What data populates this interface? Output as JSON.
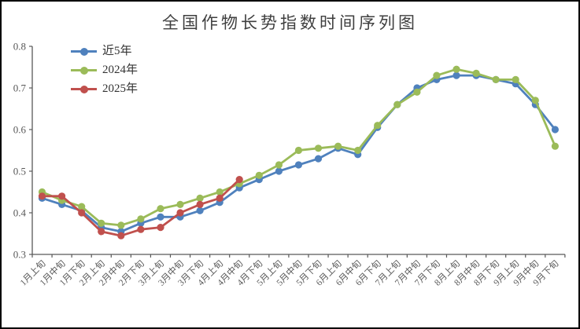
{
  "chart_data": {
    "type": "line",
    "title": "全国作物长势指数时间序列图",
    "xlabel": "",
    "ylabel": "",
    "ylim": [
      0.3,
      0.8
    ],
    "ytick_step": 0.1,
    "ytick_labels": [
      "0.3",
      "0.4",
      "0.5",
      "0.6",
      "0.7",
      "0.8"
    ],
    "grid": false,
    "legend_position": "top-left-inside",
    "axis_color": "#595959",
    "tick_label_color": "#595959",
    "categories": [
      "1月上旬",
      "1月中旬",
      "1月下旬",
      "2月上旬",
      "2月中旬",
      "2月下旬",
      "3月上旬",
      "3月中旬",
      "3月下旬",
      "4月上旬",
      "4月中旬",
      "4月下旬",
      "5月上旬",
      "5月中旬",
      "5月下旬",
      "6月上旬",
      "6月中旬",
      "6月下旬",
      "7月上旬",
      "7月中旬",
      "7月下旬",
      "8月上旬",
      "8月中旬",
      "8月下旬",
      "9月上旬",
      "9月中旬",
      "9月下旬"
    ],
    "series": [
      {
        "name": "近5年",
        "color": "#4F81BD",
        "values": [
          0.435,
          0.42,
          0.405,
          0.365,
          0.355,
          0.375,
          0.39,
          0.39,
          0.405,
          0.425,
          0.46,
          0.48,
          0.5,
          0.515,
          0.53,
          0.555,
          0.54,
          0.605,
          0.66,
          0.7,
          0.72,
          0.73,
          0.73,
          0.72,
          0.71,
          0.66,
          0.6
        ]
      },
      {
        "name": "2024年",
        "color": "#9BBB59",
        "values": [
          0.45,
          0.43,
          0.415,
          0.375,
          0.37,
          0.385,
          0.41,
          0.42,
          0.435,
          0.45,
          0.47,
          0.49,
          0.515,
          0.55,
          0.555,
          0.56,
          0.55,
          0.61,
          0.66,
          0.69,
          0.73,
          0.745,
          0.735,
          0.72,
          0.72,
          0.67,
          0.56
        ]
      },
      {
        "name": "2025年",
        "color": "#C0504D",
        "values": [
          0.44,
          0.44,
          0.4,
          0.355,
          0.345,
          0.36,
          0.365,
          0.4,
          0.42,
          0.435,
          0.48,
          null,
          null,
          null,
          null,
          null,
          null,
          null,
          null,
          null,
          null,
          null,
          null,
          null,
          null,
          null,
          null
        ]
      }
    ]
  }
}
